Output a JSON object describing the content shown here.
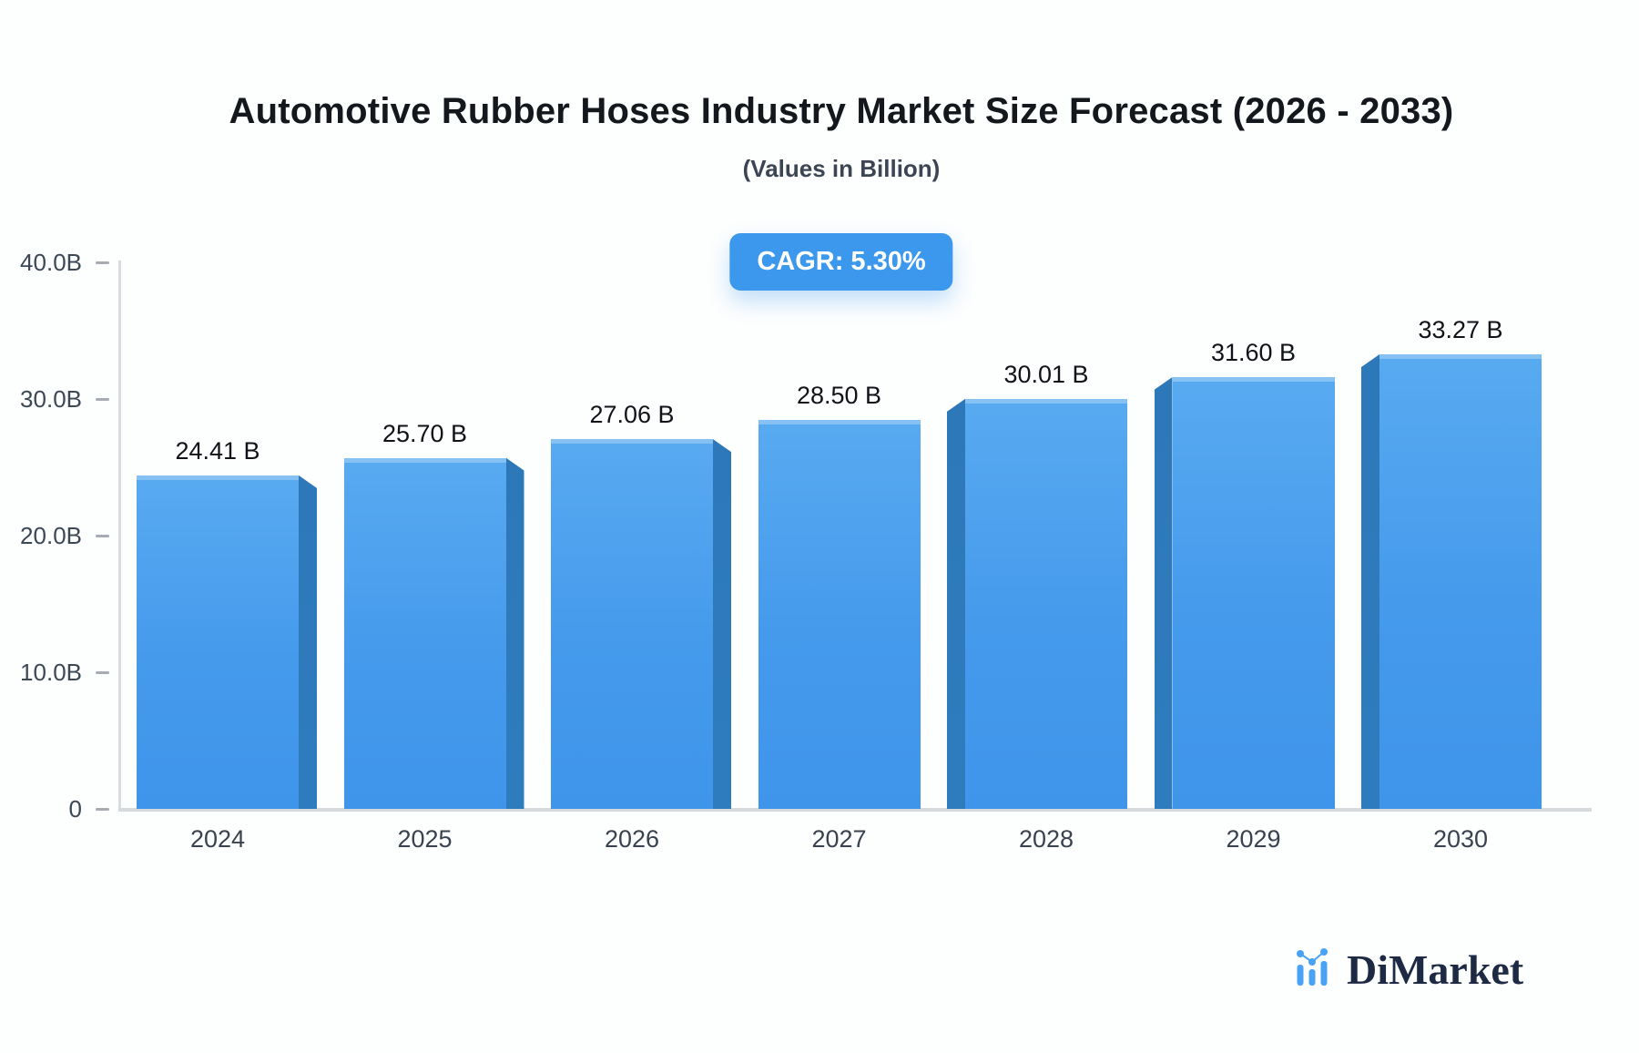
{
  "title": "Automotive Rubber Hoses Industry Market Size Forecast (2026 - 2033)",
  "subtitle": "(Values in Billion)",
  "badge": {
    "label": "CAGR: 5.30%"
  },
  "chart_data": {
    "type": "bar",
    "categories": [
      "2024",
      "2025",
      "2026",
      "2027",
      "2028",
      "2029",
      "2030"
    ],
    "values": [
      24.41,
      25.7,
      27.06,
      28.5,
      30.01,
      31.6,
      33.27
    ],
    "value_labels": [
      "24.41 B",
      "25.70 B",
      "27.06 B",
      "28.50 B",
      "30.01 B",
      "31.60 B",
      "33.27 B"
    ],
    "title": "Automotive Rubber Hoses Industry Market Size Forecast (2026 - 2033)",
    "xlabel": "",
    "ylabel": "",
    "ylim": [
      0,
      40
    ],
    "yticks": [
      {
        "label": "40.0B",
        "value": 40
      },
      {
        "label": "30.0B",
        "value": 30
      },
      {
        "label": "20.0B",
        "value": 20
      },
      {
        "label": "10.0B",
        "value": 10
      },
      {
        "label": "0",
        "value": 0
      }
    ],
    "grid": false,
    "legend": false,
    "bar_style": "3d-perspective-to-center"
  },
  "logo": {
    "text": "DiMarket"
  },
  "colors": {
    "accent_blue": "#3b98ed",
    "bar_face_top": "#58aaf0",
    "bar_face_bottom": "#3f95ea",
    "bar_side": "#2d78b8",
    "axis_line": "#d9dce1",
    "tick_dash": "#a6abb4",
    "title_text": "#14181d",
    "axis_text": "#3a4250",
    "badge_text": "#ffffff",
    "logo_text": "#1e2a44",
    "logo_icon_blue": "#4aa2f5"
  }
}
